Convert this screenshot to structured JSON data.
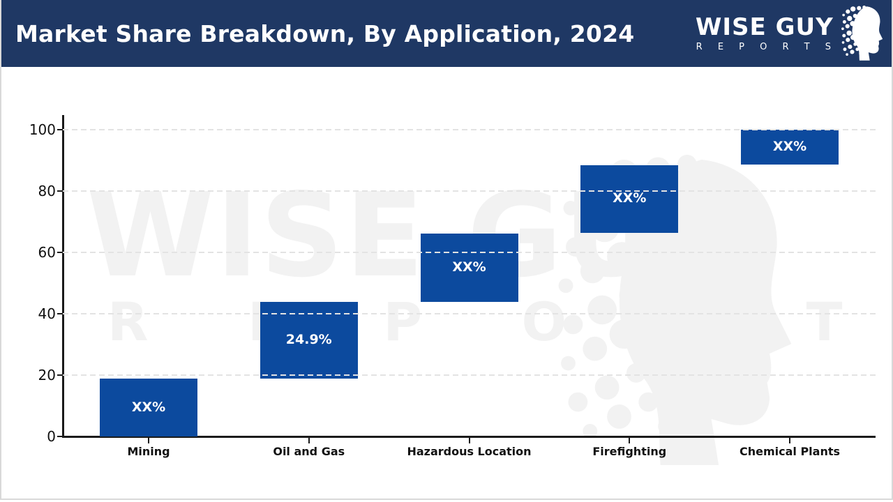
{
  "header": {
    "title": "Market Share Breakdown, By Application, 2024",
    "logo": {
      "name": "WISE GUY REPORTS",
      "line1": "WISE GUY",
      "line2": "R E P O R T S"
    }
  },
  "watermark": {
    "line1": "WISE GUY",
    "line2": "R E P O R T S"
  },
  "chart_data": {
    "type": "bar",
    "subtype": "floating-waterfall",
    "title": "Market Share Breakdown, By Application, 2024",
    "categories": [
      "Mining",
      "Oil and Gas",
      "Hazardous Location",
      "Firefighting",
      "Chemical Plants"
    ],
    "segments": [
      {
        "category": "Mining",
        "start": 0,
        "end": 18.8,
        "label": "XX%"
      },
      {
        "category": "Oil and Gas",
        "start": 18.8,
        "end": 43.8,
        "label": "24.9%"
      },
      {
        "category": "Hazardous Location",
        "start": 43.8,
        "end": 66.2,
        "label": "XX%"
      },
      {
        "category": "Firefighting",
        "start": 66.4,
        "end": 88.5,
        "label": "XX%"
      },
      {
        "category": "Chemical Plants",
        "start": 88.7,
        "end": 100,
        "label": "XX%"
      }
    ],
    "y_ticks": [
      0,
      20,
      40,
      60,
      80,
      100
    ],
    "ylim": [
      0,
      105
    ],
    "xlabel": "",
    "ylabel": "",
    "grid": "horizontal-dashed",
    "legend": "none",
    "bar_color": "#0c4a9e",
    "bar_label_color": "#ffffff"
  },
  "colors": {
    "header_bg": "#1f3864",
    "bar": "#0c4a9e",
    "axis": "#1a1a1a",
    "grid": "#e3e3e3",
    "watermark": "#f2f2f2",
    "page_border": "#d9d9d9",
    "text": "#111111",
    "bar_label": "#ffffff"
  }
}
